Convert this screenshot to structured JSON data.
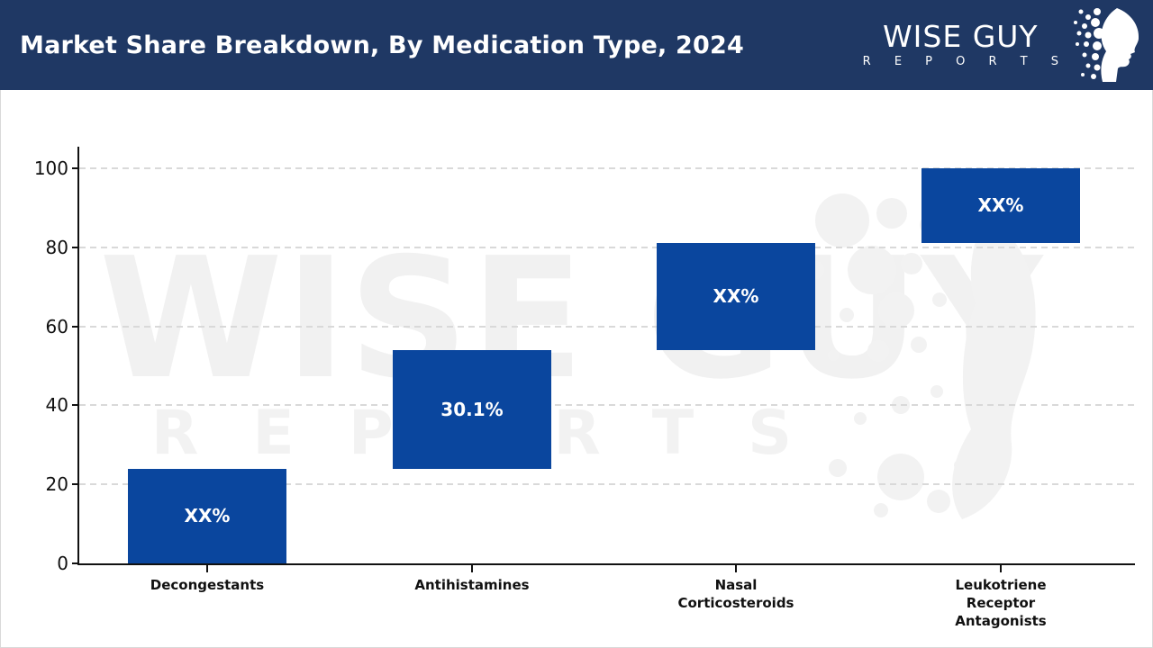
{
  "header": {
    "title": "Market Share Breakdown, By Medication Type, 2024",
    "bg_color": "#1f3864",
    "logo": {
      "line1": "WISE GUY",
      "line2": "R E P O R T S"
    }
  },
  "watermark": {
    "line1": "WISE GUY",
    "line2": "REPORTS",
    "color": "#f1f1f1"
  },
  "chart_data": {
    "type": "bar",
    "subtype": "floating-waterfall",
    "title": "Market Share Breakdown, By Medication Type, 2024",
    "xlabel": "",
    "ylabel": "",
    "categories": [
      "Decongestants",
      "Antihistamines",
      "Nasal Corticosteroids",
      "Leukotriene Receptor Antagonists"
    ],
    "series": [
      {
        "name": "Market Share (%)",
        "values": [
          24,
          30.1,
          27.1,
          18.8
        ]
      }
    ],
    "bars": [
      {
        "category": "Decongestants",
        "start": 0,
        "end": 24,
        "label": "XX%"
      },
      {
        "category": "Antihistamines",
        "start": 24,
        "end": 54.1,
        "label": "30.1%"
      },
      {
        "category": "Nasal Corticosteroids",
        "start": 54.1,
        "end": 81.2,
        "label": "XX%"
      },
      {
        "category": "Leukotriene Receptor Antagonists",
        "start": 81.2,
        "end": 100,
        "label": "XX%"
      }
    ],
    "ylim": [
      0,
      105
    ],
    "yticks": [
      0,
      20,
      40,
      60,
      80,
      100
    ],
    "grid": "horizontal-dashed",
    "grid_color": "#d9d9d9",
    "bar_color": "#0a469e",
    "bar_label_color": "#ffffff",
    "axis_color": "#111111",
    "legend": "none"
  }
}
